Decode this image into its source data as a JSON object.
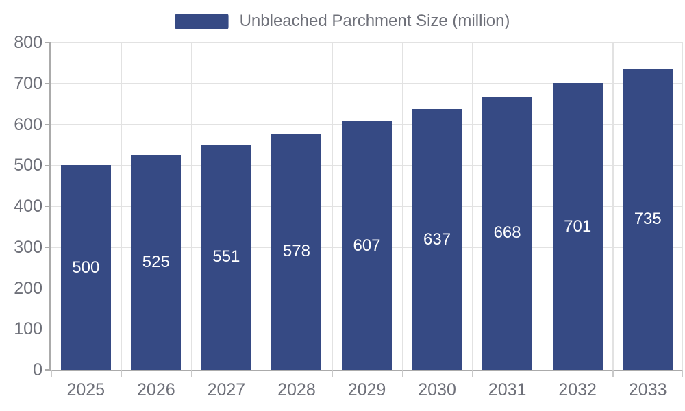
{
  "legend": {
    "label": "Unbleached Parchment Size (million)"
  },
  "chart_data": {
    "type": "bar",
    "title": "Unbleached Parchment Size (million)",
    "categories": [
      "2025",
      "2026",
      "2027",
      "2028",
      "2029",
      "2030",
      "2031",
      "2032",
      "2033"
    ],
    "values": [
      500,
      525,
      551,
      578,
      607,
      637,
      668,
      701,
      735
    ],
    "series": [
      {
        "name": "Unbleached Parchment Size (million)",
        "values": [
          500,
          525,
          551,
          578,
          607,
          637,
          668,
          701,
          735
        ]
      }
    ],
    "xlabel": "",
    "ylabel": "",
    "ylim": [
      0,
      800
    ],
    "yticks": [
      0,
      100,
      200,
      300,
      400,
      500,
      600,
      700,
      800
    ],
    "grid": true,
    "legend_position": "top-center",
    "value_labels": "inside-center",
    "colors": {
      "bar": "#364A84",
      "value_label": "#FFFFFF",
      "axis_label": "#6E7079",
      "legend_text": "#6E7079",
      "grid_line": "#E2E2E2",
      "axis_line": "#ABABAB",
      "background": "#FFFFFF"
    }
  }
}
